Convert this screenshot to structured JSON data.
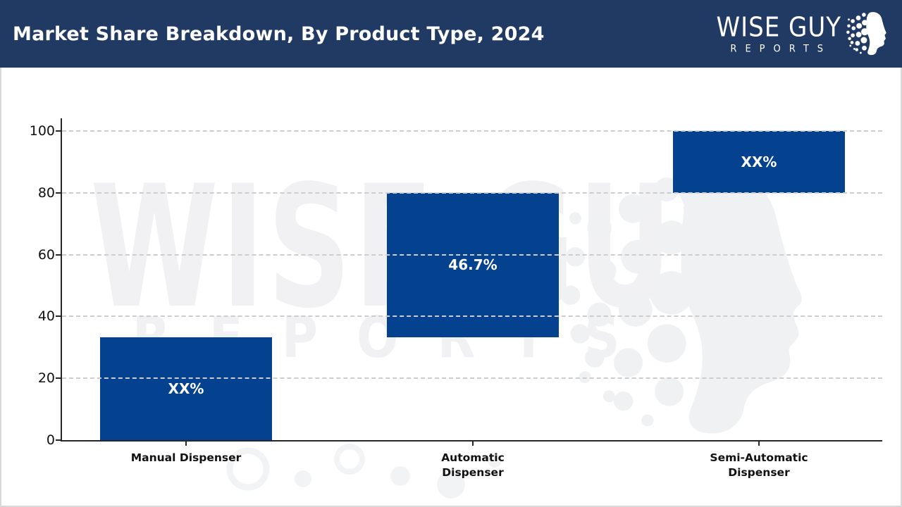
{
  "header": {
    "title": "Market Share Breakdown, By Product Type, 2024",
    "background": "#213a63",
    "logo": {
      "line1": "WISE GUY",
      "line2": "REPORTS"
    }
  },
  "watermark": {
    "line1": "WISE GUY",
    "line2": "REPORTS"
  },
  "chart_data": {
    "type": "bar",
    "variant": "floating-segment-bars",
    "title": "Market Share Breakdown, By Product Type, 2024",
    "categories": [
      "Manual Dispenser",
      "Automatic Dispenser",
      "Semi-Automatic Dispenser"
    ],
    "segments": [
      {
        "category": "Manual Dispenser",
        "start": 0,
        "end": 33.3,
        "label": "XX%"
      },
      {
        "category": "Automatic Dispenser",
        "start": 33.3,
        "end": 80,
        "label": "46.7%"
      },
      {
        "category": "Semi-Automatic Dispenser",
        "start": 80,
        "end": 100,
        "label": "XX%"
      }
    ],
    "ylim": [
      0,
      100
    ],
    "yticks": [
      0,
      20,
      40,
      60,
      80,
      100
    ],
    "grid": true,
    "grid_style": "dashed",
    "legend": false,
    "colors": {
      "bar": "#04418f",
      "bar_label": "#ffffff",
      "grid": "#cdcdcd",
      "axis": "#262626",
      "tick_text": "#111111",
      "header_bg": "#213a63",
      "watermark": "#f1f1f3"
    }
  }
}
